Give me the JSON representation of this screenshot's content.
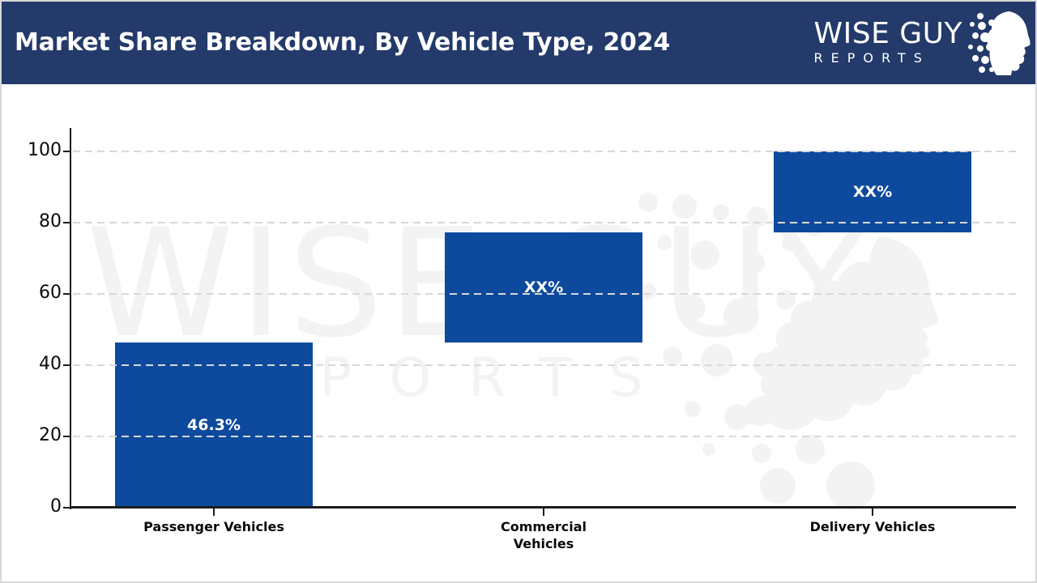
{
  "header": {
    "title": "Market Share Breakdown, By Vehicle Type, 2024",
    "background_color": "#233a6b",
    "logo": {
      "name": "WISE GUY",
      "subtitle": "REPORTS"
    }
  },
  "watermark": {
    "line1": "WISE GUY",
    "line2": "REPORTS"
  },
  "chart_data": {
    "type": "bar",
    "subtype": "waterfall",
    "title": "Market Share Breakdown, By Vehicle Type, 2024",
    "categories": [
      "Passenger Vehicles",
      "Commercial\nVehicles",
      "Delivery Vehicles"
    ],
    "series": [
      {
        "name": "Market share (%)",
        "segments": [
          {
            "category": "Passenger Vehicles",
            "start": 0,
            "end": 46.3,
            "label": "46.3%"
          },
          {
            "category": "Commercial Vehicles",
            "start": 46.3,
            "end": 77.3,
            "label": "XX%"
          },
          {
            "category": "Delivery Vehicles",
            "start": 77.3,
            "end": 100,
            "label": "XX%"
          }
        ]
      }
    ],
    "xlabel": "",
    "ylabel": "",
    "yticks": [
      0,
      20,
      40,
      60,
      80,
      100
    ],
    "ylim": [
      0,
      105
    ],
    "grid": "horizontal-dashed",
    "legend": "none",
    "bar_color": "#0d4a9e",
    "bar_label_color": "#ffffff",
    "gridline_color": "#d8d8d8",
    "axis_color": "#1c1c1c"
  }
}
